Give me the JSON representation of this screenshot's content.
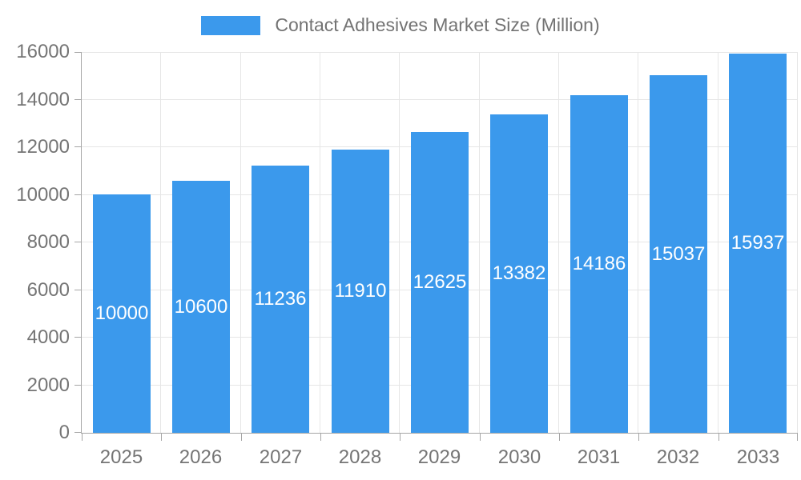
{
  "legend": {
    "label": "Contact Adhesives Market Size (Million)",
    "swatch_color": "#3b99ec"
  },
  "chart_data": {
    "type": "bar",
    "title": "Contact Adhesives Market Size (Million)",
    "categories": [
      "2025",
      "2026",
      "2027",
      "2028",
      "2029",
      "2030",
      "2031",
      "2032",
      "2033"
    ],
    "values": [
      10000,
      10600,
      11236,
      11910,
      12625,
      13382,
      14186,
      15037,
      15937
    ],
    "xlabel": "",
    "ylabel": "",
    "ylim": [
      0,
      16000
    ],
    "yticks": [
      0,
      2000,
      4000,
      6000,
      8000,
      10000,
      12000,
      14000,
      16000
    ],
    "grid": true,
    "legend_position": "top",
    "bar_color": "#3b99ec",
    "bar_label_color": "#ffffff",
    "axis_line_color": "#a6a6a6",
    "gridline_color": "#e6e6e6",
    "tick_label_color": "#757575"
  }
}
